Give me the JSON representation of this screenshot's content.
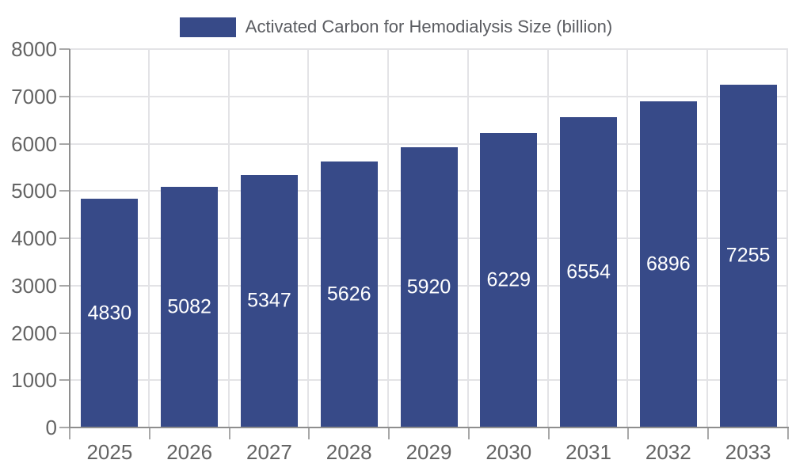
{
  "chart_data": {
    "type": "bar",
    "title": "Activated Carbon for Hemodialysis Size (billion)",
    "categories": [
      "2025",
      "2026",
      "2027",
      "2028",
      "2029",
      "2030",
      "2031",
      "2032",
      "2033"
    ],
    "values": [
      4830,
      5082,
      5347,
      5626,
      5920,
      6229,
      6554,
      6896,
      7255
    ],
    "xlabel": "",
    "ylabel": "",
    "ylim": [
      0,
      8000
    ],
    "ytick_step": 1000,
    "grid": true,
    "legend_position": "top-center",
    "value_labels": "inside-center-white",
    "colors": {
      "bar": "#374a88",
      "grid": "#e3e3e6",
      "axis": "#8e8e8e",
      "tick": "#a8a8a8",
      "axis_label": "#646464",
      "title": "#5a5c61",
      "value_label": "#ffffff",
      "background": "#ffffff"
    }
  }
}
